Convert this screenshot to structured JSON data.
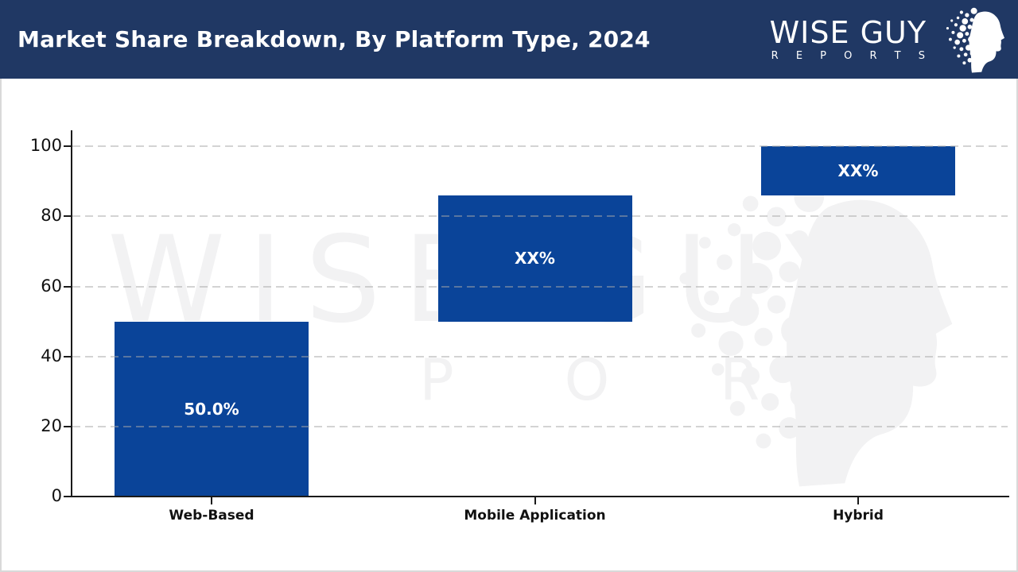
{
  "header": {
    "title": "Market Share Breakdown, By Platform Type, 2024",
    "logo": {
      "line1": "WISE GUY",
      "line2": "R E P O R T S"
    }
  },
  "watermark": {
    "line1": "WISE GUY",
    "line2": "R E P O R T S"
  },
  "colors": {
    "header_bg": "#203864",
    "bar": "#0a4499",
    "grid_dash": "#d4d4d4",
    "axis": "#1a1a1a",
    "bar_label": "#ffffff",
    "watermark": "#f2f2f3"
  },
  "chart_data": {
    "type": "bar",
    "subtype": "floating-waterfall-percentage",
    "title": "Market Share Breakdown, By Platform Type, 2024",
    "categories": [
      "Web-Based",
      "Mobile Application",
      "Hybrid"
    ],
    "bars": [
      {
        "category": "Web-Based",
        "base": 0,
        "top": 50,
        "label": "50.0%"
      },
      {
        "category": "Mobile Application",
        "base": 50,
        "top": 86,
        "label": "XX%"
      },
      {
        "category": "Hybrid",
        "base": 86,
        "top": 100,
        "label": "XX%"
      }
    ],
    "yticks": [
      0,
      20,
      40,
      60,
      80,
      100
    ],
    "ylim": [
      0,
      104
    ],
    "xlabel": "",
    "ylabel": "",
    "grid": "horizontal-dashed",
    "legend": "none",
    "bar_color": "#0a4499"
  }
}
